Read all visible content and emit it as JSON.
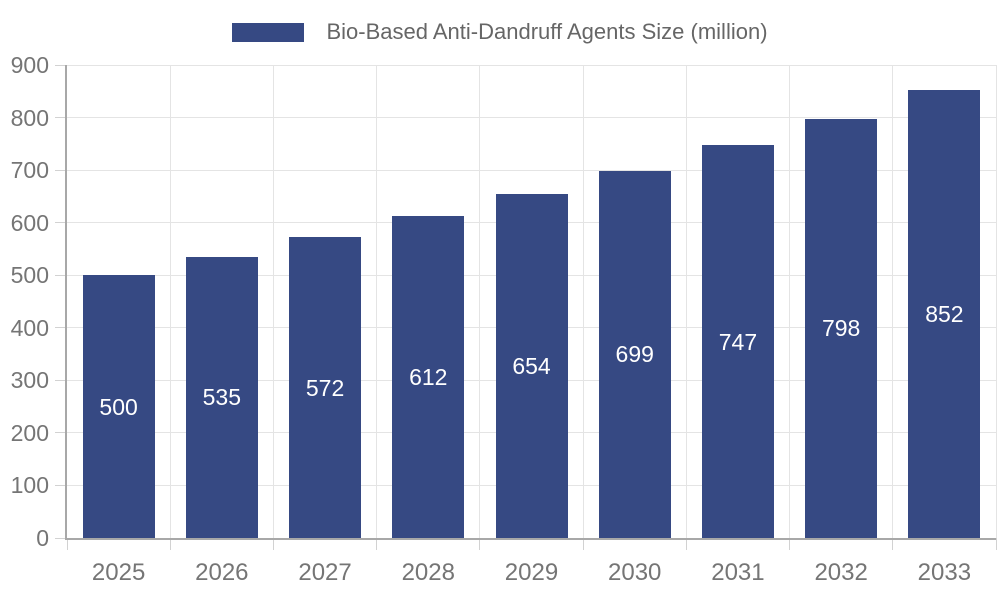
{
  "chart_data": {
    "type": "bar",
    "title": "Bio-Based Anti-Dandruff Agents Size (million)",
    "legend_position": "top",
    "categories": [
      "2025",
      "2026",
      "2027",
      "2028",
      "2029",
      "2030",
      "2031",
      "2032",
      "2033"
    ],
    "values": [
      500,
      535,
      572,
      612,
      654,
      699,
      747,
      798,
      852
    ],
    "xlabel": "",
    "ylabel": "",
    "ylim": [
      0,
      900
    ],
    "y_tick_step": 100,
    "y_tick_labels": [
      "0",
      "100",
      "200",
      "300",
      "400",
      "500",
      "600",
      "700",
      "800",
      "900"
    ],
    "grid": true,
    "colors": {
      "bar": "#364983",
      "value_label": "#ffffff",
      "grid": "#e4e4e4",
      "axis": "#a8a8a8",
      "tick": "#d2d2d2",
      "axis_label": "#757575",
      "title": "#666666",
      "background": "#ffffff"
    }
  }
}
